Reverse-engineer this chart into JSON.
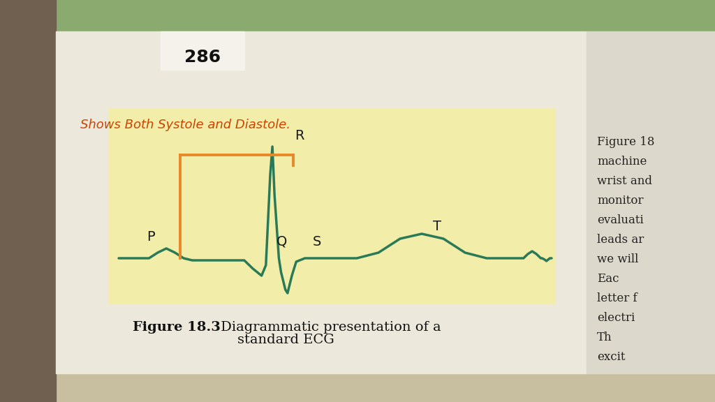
{
  "bg_outer": "#c8bfa0",
  "bg_page_left": "#e8e0d0",
  "bg_page_center": "#f0ebe0",
  "bg_yellow": "#f5f0c8",
  "bg_right": "#d4cdb8",
  "ecg_color": "#2a7a58",
  "orange_color": "#e8882a",
  "page_number": "286",
  "handwritten_line1": "Shows Both Systole and Diastole.",
  "figure_caption_bold": "Figure 18.3",
  "figure_caption_rest": " Diagrammatic presentation of a",
  "figure_caption_line2": "standard ECG",
  "right_text": [
    "Figure 18",
    "machine",
    "wrist and",
    "monitor",
    "evaluati",
    "leads ar",
    "we will",
    "Eac",
    "letter f",
    "electri",
    "Th",
    "excit"
  ],
  "fig_width": 10.24,
  "fig_height": 5.76
}
